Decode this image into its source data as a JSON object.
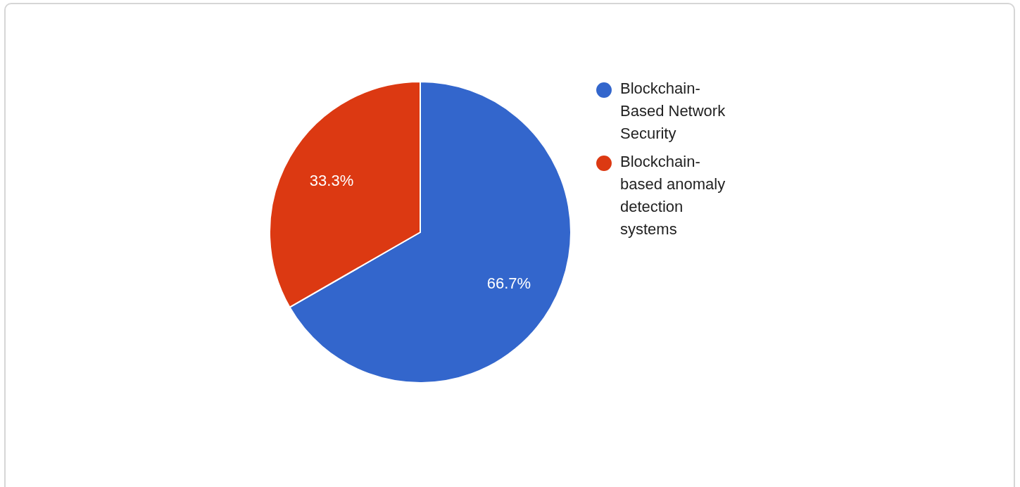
{
  "chart_data": {
    "type": "pie",
    "categories": [
      "Blockchain-Based Network Security",
      "Blockchain-based anomaly detection systems"
    ],
    "values": [
      66.7,
      33.3
    ],
    "colors": [
      "#3366cc",
      "#dc3912"
    ],
    "value_labels": [
      "66.7%",
      "33.3%"
    ],
    "legend": "right"
  }
}
